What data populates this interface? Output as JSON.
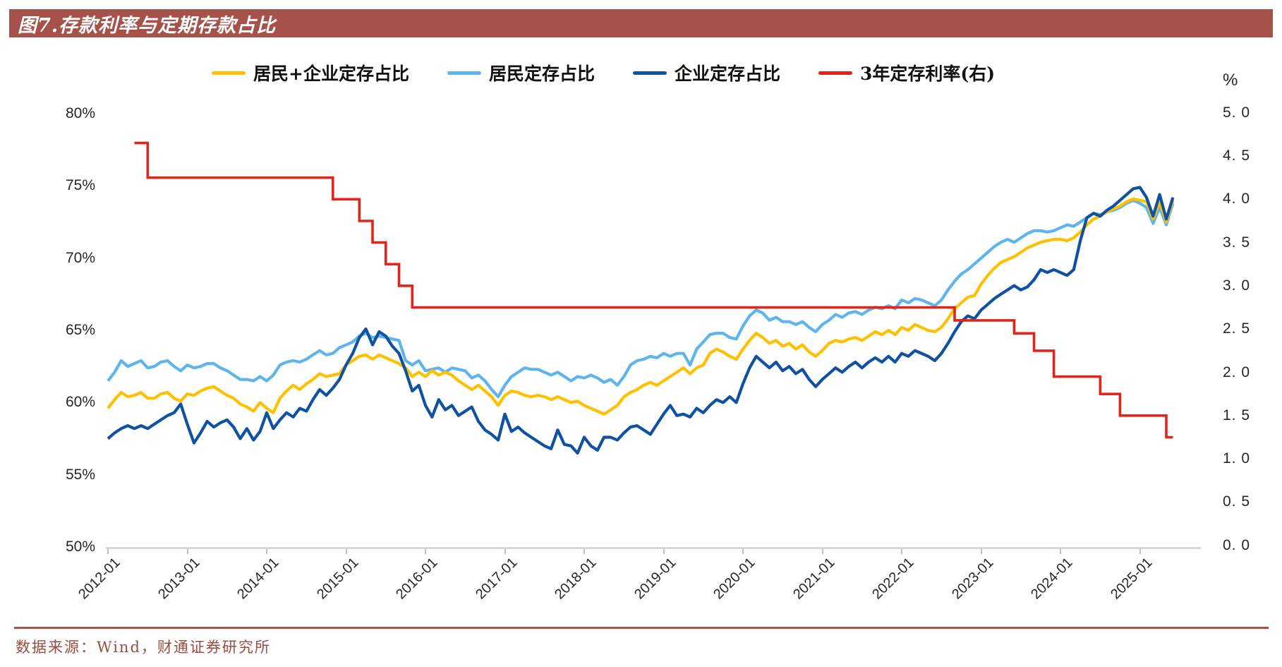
{
  "header": {
    "title": "图7.存款利率与定期存款占比",
    "bar_color": "#A6524B",
    "text_color": "#FFFFFF"
  },
  "source": {
    "label": "数据来源：Wind，财通证券研究所",
    "color": "#9B4B41"
  },
  "chart_data": {
    "type": "line",
    "title": "存款利率与定期存款占比",
    "frequency": "monthly",
    "x_start": "2012-01",
    "x_end": "2025-06",
    "x_tick_labels": [
      "2012-01",
      "2013-01",
      "2014-01",
      "2015-01",
      "2016-01",
      "2017-01",
      "2018-01",
      "2019-01",
      "2020-01",
      "2021-01",
      "2022-01",
      "2023-01",
      "2024-01",
      "2025-01"
    ],
    "left_axis": {
      "min": 50,
      "max": 80,
      "ticks": [
        "80%",
        "75%",
        "70%",
        "65%",
        "60%",
        "55%",
        "50%"
      ]
    },
    "right_axis": {
      "min": 0,
      "max": 5,
      "unit": "%",
      "ticks": [
        "5. 0",
        "4. 5",
        "4. 0",
        "3. 5",
        "3. 0",
        "2. 5",
        "2. 0",
        "1. 5",
        "1. 0",
        "0. 5",
        "0. 0"
      ]
    },
    "legend_position": "top",
    "grid": false,
    "series": [
      {
        "name": "居民+企业定存占比",
        "color": "#FFC000",
        "axis": "left",
        "step": false,
        "values": [
          59.6,
          60.2,
          60.7,
          60.4,
          60.5,
          60.7,
          60.3,
          60.3,
          60.6,
          60.7,
          60.3,
          60.1,
          60.6,
          60.5,
          60.8,
          61.0,
          61.1,
          60.8,
          60.5,
          60.3,
          59.9,
          59.7,
          59.4,
          60.0,
          59.6,
          59.3,
          60.3,
          60.8,
          61.2,
          60.9,
          61.3,
          61.6,
          62.0,
          61.8,
          61.9,
          62.0,
          62.6,
          62.9,
          63.2,
          63.3,
          63.0,
          63.3,
          63.1,
          62.9,
          62.7,
          62.4,
          61.8,
          62.1,
          61.8,
          62.2,
          61.9,
          62.1,
          61.9,
          61.5,
          61.2,
          60.9,
          61.2,
          60.8,
          60.4,
          59.8,
          60.5,
          60.8,
          60.7,
          60.5,
          60.4,
          60.5,
          60.4,
          60.2,
          60.4,
          60.2,
          60.0,
          60.1,
          59.8,
          59.6,
          59.4,
          59.2,
          59.5,
          59.8,
          60.4,
          60.7,
          60.9,
          61.2,
          61.4,
          61.2,
          61.5,
          61.8,
          62.1,
          62.4,
          62.0,
          62.4,
          62.6,
          63.4,
          63.7,
          63.5,
          63.2,
          63.0,
          63.7,
          64.3,
          64.8,
          64.5,
          64.1,
          64.3,
          63.9,
          64.1,
          63.7,
          64.0,
          63.5,
          63.2,
          63.6,
          64.1,
          64.3,
          64.2,
          64.4,
          64.5,
          64.3,
          64.6,
          64.9,
          64.7,
          65.0,
          64.7,
          65.2,
          65.0,
          65.4,
          65.2,
          65.0,
          64.9,
          65.2,
          65.8,
          66.5,
          66.9,
          67.3,
          67.4,
          68.2,
          68.8,
          69.3,
          69.7,
          69.9,
          70.1,
          70.4,
          70.7,
          70.9,
          71.1,
          71.2,
          71.3,
          71.3,
          71.2,
          71.4,
          71.8,
          72.3,
          72.7,
          72.9,
          73.2,
          73.4,
          73.6,
          73.9,
          74.1,
          74.0,
          73.9,
          72.7,
          73.9,
          72.5,
          74.0
        ]
      },
      {
        "name": "居民定存占比",
        "color": "#5EB4EC",
        "axis": "left",
        "step": false,
        "values": [
          61.5,
          62.1,
          62.9,
          62.5,
          62.7,
          62.9,
          62.4,
          62.5,
          62.8,
          62.9,
          62.5,
          62.2,
          62.6,
          62.4,
          62.5,
          62.7,
          62.7,
          62.4,
          62.2,
          61.9,
          61.6,
          61.6,
          61.5,
          61.8,
          61.5,
          61.9,
          62.6,
          62.8,
          62.9,
          62.8,
          63.0,
          63.3,
          63.6,
          63.3,
          63.4,
          63.8,
          64.0,
          64.2,
          64.6,
          64.8,
          64.5,
          64.6,
          64.5,
          64.4,
          64.3,
          62.9,
          62.6,
          62.9,
          62.2,
          62.3,
          62.4,
          62.1,
          62.4,
          62.3,
          62.2,
          61.7,
          61.9,
          61.5,
          60.9,
          60.4,
          61.2,
          61.8,
          62.1,
          62.4,
          62.3,
          62.3,
          62.1,
          61.9,
          62.1,
          61.8,
          61.5,
          61.8,
          61.7,
          61.9,
          61.7,
          61.4,
          61.6,
          61.2,
          61.8,
          62.6,
          62.9,
          63.0,
          63.2,
          63.1,
          63.4,
          63.2,
          63.4,
          63.4,
          62.6,
          63.7,
          64.2,
          64.7,
          64.8,
          64.8,
          64.5,
          64.4,
          65.3,
          66.0,
          66.4,
          66.2,
          65.7,
          65.9,
          65.6,
          65.6,
          65.4,
          65.6,
          65.2,
          64.9,
          65.4,
          65.7,
          66.1,
          65.9,
          66.2,
          66.3,
          66.1,
          66.4,
          66.6,
          66.5,
          66.7,
          66.5,
          67.1,
          66.9,
          67.2,
          67.1,
          66.9,
          66.7,
          67.1,
          67.8,
          68.4,
          68.9,
          69.2,
          69.6,
          70.0,
          70.4,
          70.8,
          71.1,
          71.3,
          71.1,
          71.4,
          71.7,
          71.9,
          71.9,
          71.8,
          71.9,
          72.1,
          72.3,
          72.2,
          72.5,
          72.8,
          73.1,
          73.0,
          73.2,
          73.3,
          73.5,
          73.8,
          74.0,
          73.8,
          73.5,
          72.4,
          73.5,
          72.3,
          73.8
        ]
      },
      {
        "name": "企业定存占比",
        "color": "#0F51A3",
        "axis": "left",
        "step": false,
        "values": [
          57.5,
          57.9,
          58.2,
          58.4,
          58.2,
          58.4,
          58.2,
          58.5,
          58.8,
          59.1,
          59.3,
          59.9,
          58.5,
          57.2,
          57.9,
          58.7,
          58.3,
          58.6,
          58.8,
          58.3,
          57.5,
          58.2,
          57.4,
          58.0,
          59.3,
          58.2,
          58.8,
          59.3,
          59.0,
          59.6,
          59.4,
          60.2,
          60.9,
          60.5,
          61.0,
          61.6,
          62.6,
          63.4,
          64.5,
          65.1,
          64.0,
          64.9,
          64.6,
          63.9,
          63.4,
          62.2,
          60.8,
          61.2,
          59.8,
          59.0,
          60.2,
          59.5,
          59.8,
          59.1,
          59.4,
          59.7,
          58.7,
          58.1,
          57.8,
          57.4,
          59.2,
          58.0,
          58.3,
          57.9,
          57.6,
          57.3,
          57.0,
          56.8,
          58.1,
          57.1,
          57.0,
          56.5,
          57.6,
          57.0,
          56.7,
          57.6,
          57.6,
          57.4,
          57.9,
          58.3,
          58.4,
          58.1,
          57.8,
          58.5,
          59.2,
          59.8,
          59.1,
          59.2,
          59.0,
          59.6,
          59.3,
          59.8,
          60.2,
          60.0,
          60.4,
          60.0,
          61.3,
          62.4,
          63.2,
          62.8,
          62.4,
          62.8,
          62.2,
          62.5,
          62.0,
          62.3,
          61.6,
          61.1,
          61.6,
          62.0,
          62.4,
          62.1,
          62.5,
          62.8,
          62.4,
          62.8,
          63.1,
          62.8,
          63.2,
          62.8,
          63.4,
          63.2,
          63.6,
          63.4,
          63.2,
          62.9,
          63.4,
          64.1,
          64.9,
          65.6,
          66.0,
          65.8,
          66.4,
          66.8,
          67.2,
          67.5,
          67.8,
          68.1,
          67.8,
          68.0,
          68.5,
          69.2,
          69.0,
          69.2,
          69.0,
          68.8,
          69.2,
          71.2,
          72.8,
          73.1,
          72.9,
          73.3,
          73.6,
          74.0,
          74.4,
          74.8,
          74.9,
          74.2,
          72.9,
          74.4,
          72.7,
          74.2
        ]
      },
      {
        "name": "3年定存利率(右)",
        "color": "#E1251B",
        "axis": "right",
        "step": true,
        "values": [
          null,
          null,
          null,
          null,
          4.65,
          4.65,
          4.25,
          4.25,
          4.25,
          4.25,
          4.25,
          4.25,
          4.25,
          4.25,
          4.25,
          4.25,
          4.25,
          4.25,
          4.25,
          4.25,
          4.25,
          4.25,
          4.25,
          4.25,
          4.25,
          4.25,
          4.25,
          4.25,
          4.25,
          4.25,
          4.25,
          4.25,
          4.25,
          4.25,
          4.0,
          4.0,
          4.0,
          4.0,
          3.75,
          3.75,
          3.5,
          3.5,
          3.25,
          3.25,
          3.0,
          3.0,
          2.75,
          2.75,
          2.75,
          2.75,
          2.75,
          2.75,
          2.75,
          2.75,
          2.75,
          2.75,
          2.75,
          2.75,
          2.75,
          2.75,
          2.75,
          2.75,
          2.75,
          2.75,
          2.75,
          2.75,
          2.75,
          2.75,
          2.75,
          2.75,
          2.75,
          2.75,
          2.75,
          2.75,
          2.75,
          2.75,
          2.75,
          2.75,
          2.75,
          2.75,
          2.75,
          2.75,
          2.75,
          2.75,
          2.75,
          2.75,
          2.75,
          2.75,
          2.75,
          2.75,
          2.75,
          2.75,
          2.75,
          2.75,
          2.75,
          2.75,
          2.75,
          2.75,
          2.75,
          2.75,
          2.75,
          2.75,
          2.75,
          2.75,
          2.75,
          2.75,
          2.75,
          2.75,
          2.75,
          2.75,
          2.75,
          2.75,
          2.75,
          2.75,
          2.75,
          2.75,
          2.75,
          2.75,
          2.75,
          2.75,
          2.75,
          2.75,
          2.75,
          2.75,
          2.75,
          2.75,
          2.75,
          2.75,
          2.6,
          2.6,
          2.6,
          2.6,
          2.6,
          2.6,
          2.6,
          2.6,
          2.6,
          2.45,
          2.45,
          2.45,
          2.25,
          2.25,
          2.25,
          1.95,
          1.95,
          1.95,
          1.95,
          1.95,
          1.95,
          1.95,
          1.75,
          1.75,
          1.75,
          1.5,
          1.5,
          1.5,
          1.5,
          1.5,
          1.5,
          1.5,
          1.25,
          1.25
        ]
      }
    ]
  }
}
